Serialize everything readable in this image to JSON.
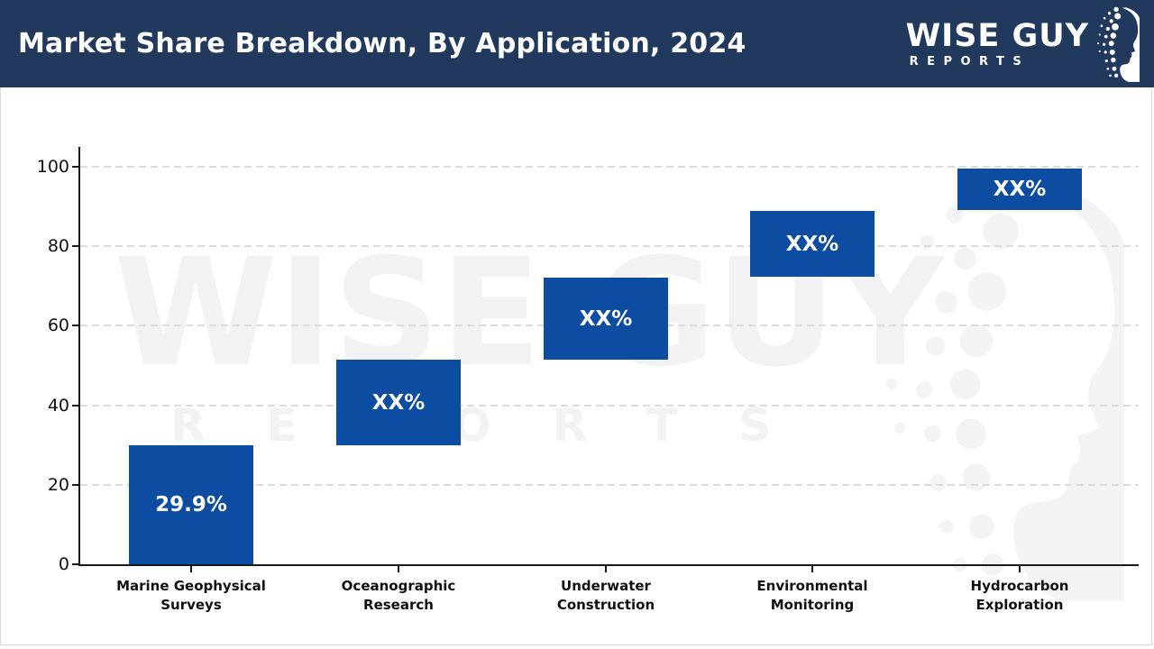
{
  "header": {
    "title": "Market Share Breakdown, By Application, 2024",
    "logo": {
      "line1": "WISE GUY",
      "line2": "REPORTS"
    }
  },
  "watermark": {
    "line1": "WISE GUY",
    "line2": "REPORTS"
  },
  "chart_data": {
    "type": "bar",
    "subtype": "waterfall",
    "title": "Market Share Breakdown, By Application, 2024",
    "categories": [
      "Marine Geophysical Surveys",
      "Oceanographic Research",
      "Underwater Construction",
      "Environmental Monitoring",
      "Hydrocarbon Exploration"
    ],
    "category_lines": [
      [
        "Marine Geophysical",
        "Surveys"
      ],
      [
        "Oceanographic",
        "Research"
      ],
      [
        "Underwater",
        "Construction"
      ],
      [
        "Environmental",
        "Monitoring"
      ],
      [
        "Hydrocarbon",
        "Exploration"
      ]
    ],
    "displayed_labels": [
      "29.9%",
      "XX%",
      "XX%",
      "XX%",
      "XX%"
    ],
    "segments": [
      {
        "label": "29.9%",
        "start": 0,
        "end": 29.9
      },
      {
        "label": "XX%",
        "start": 29.9,
        "end": 51.4
      },
      {
        "label": "XX%",
        "start": 51.4,
        "end": 72.1
      },
      {
        "label": "XX%",
        "start": 72.3,
        "end": 88.9
      },
      {
        "label": "XX%",
        "start": 89.1,
        "end": 99.5
      }
    ],
    "yticks": [
      0,
      20,
      40,
      60,
      80,
      100
    ],
    "ylim": [
      0,
      105
    ],
    "grid": "dashed-horizontal",
    "legend": "none",
    "bar_color": "#0c4da2",
    "label_color": "#ffffff",
    "axis_color": "#1a1a1a"
  }
}
